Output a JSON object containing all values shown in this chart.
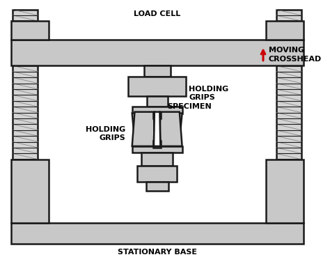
{
  "bg_color": "#ffffff",
  "gray_fill": "#c8c8c8",
  "dark_gray": "#909090",
  "dark_outline": "#1a1a1a",
  "text_color": "#000000",
  "red_color": "#cc0000",
  "label_load": "LOAD CELL",
  "label_holding_top": "HOLDING\nGRIPS",
  "label_holding_bot": "HOLDING\nGRIPS",
  "label_specimen": "SPECIMEN",
  "label_moving": "MOVING\nCROSSHEAD",
  "label_base": "STATIONARY BASE",
  "lw": 1.8,
  "fig_w": 4.74,
  "fig_h": 3.79,
  "dpi": 100
}
